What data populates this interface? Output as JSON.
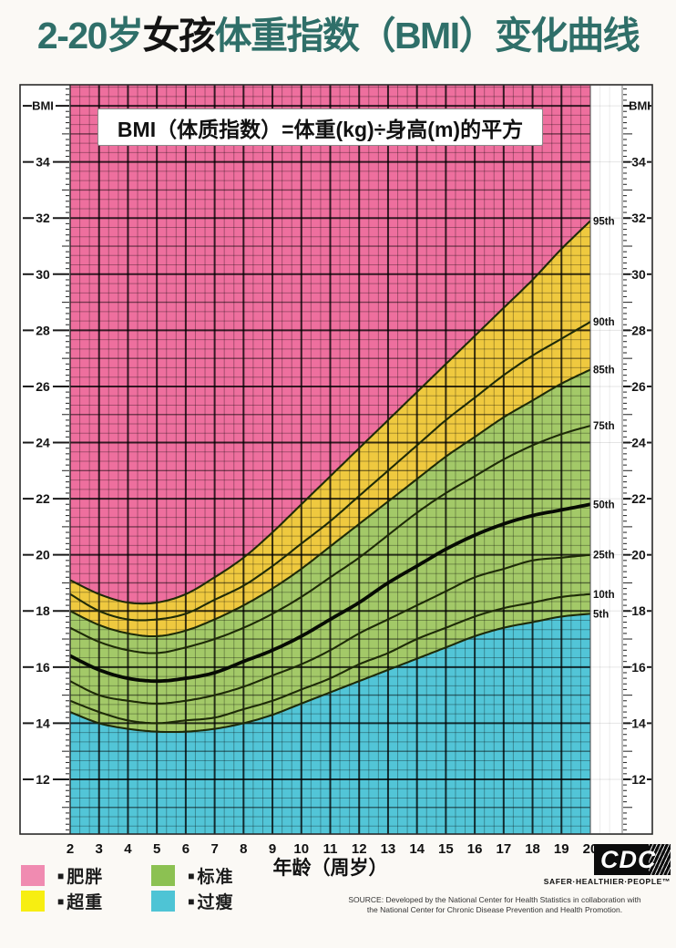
{
  "title": {
    "prefix": "2-20岁",
    "girl": "女孩",
    "suffix": "体重指数（BMI）变化曲线"
  },
  "colors": {
    "title_teal": "#2f6f69",
    "title_black": "#141414",
    "curve": "#1e2a08",
    "curve_median": "#070b03",
    "axis_text": "#151515"
  },
  "chart_data": {
    "type": "line",
    "title": "2-20岁女孩体重指数（BMI）变化曲线",
    "xlabel": "年龄（周岁）",
    "ylabel": "BMI",
    "annotation": "BMI（体质指数）=体重(kg)÷身高(m)的平方",
    "x": [
      2,
      3,
      4,
      5,
      6,
      7,
      8,
      9,
      10,
      11,
      12,
      13,
      14,
      15,
      16,
      17,
      18,
      19,
      20
    ],
    "x_ticks": [
      2,
      3,
      4,
      5,
      6,
      7,
      8,
      9,
      10,
      11,
      12,
      13,
      14,
      15,
      16,
      17,
      18,
      19,
      20
    ],
    "y_ticks": [
      34,
      32,
      30,
      28,
      26,
      24,
      22,
      20,
      18,
      16,
      14,
      12
    ],
    "xlim": [
      2,
      20
    ],
    "ylim": [
      10.05,
      36.75
    ],
    "grid": true,
    "legend_position": "bottom-left",
    "series": [
      {
        "name": "95th",
        "values": [
          19.1,
          18.6,
          18.3,
          18.3,
          18.6,
          19.2,
          19.9,
          20.8,
          21.8,
          22.8,
          23.8,
          24.8,
          25.8,
          26.8,
          27.8,
          28.8,
          29.8,
          30.9,
          31.9
        ]
      },
      {
        "name": "90th",
        "values": [
          18.6,
          18.0,
          17.7,
          17.7,
          17.9,
          18.4,
          18.9,
          19.6,
          20.4,
          21.2,
          22.1,
          23.0,
          23.9,
          24.8,
          25.6,
          26.4,
          27.1,
          27.7,
          28.3
        ]
      },
      {
        "name": "85th",
        "values": [
          18.0,
          17.5,
          17.2,
          17.1,
          17.3,
          17.7,
          18.2,
          18.8,
          19.5,
          20.3,
          21.1,
          21.9,
          22.7,
          23.5,
          24.2,
          24.9,
          25.5,
          26.1,
          26.6
        ]
      },
      {
        "name": "75th",
        "values": [
          17.4,
          16.9,
          16.6,
          16.5,
          16.7,
          17.0,
          17.4,
          17.9,
          18.5,
          19.2,
          19.9,
          20.7,
          21.5,
          22.2,
          22.8,
          23.4,
          23.9,
          24.3,
          24.6
        ]
      },
      {
        "name": "50th",
        "values": [
          16.4,
          15.9,
          15.6,
          15.5,
          15.6,
          15.8,
          16.2,
          16.6,
          17.1,
          17.7,
          18.3,
          19.0,
          19.6,
          20.2,
          20.7,
          21.1,
          21.4,
          21.6,
          21.8
        ],
        "emphasis": true
      },
      {
        "name": "25th",
        "values": [
          15.5,
          15.0,
          14.8,
          14.7,
          14.8,
          15.0,
          15.3,
          15.7,
          16.1,
          16.6,
          17.2,
          17.7,
          18.2,
          18.7,
          19.2,
          19.5,
          19.8,
          19.9,
          20.0
        ]
      },
      {
        "name": "10th",
        "values": [
          14.8,
          14.4,
          14.1,
          14.0,
          14.1,
          14.2,
          14.5,
          14.8,
          15.2,
          15.6,
          16.1,
          16.5,
          17.0,
          17.4,
          17.8,
          18.1,
          18.3,
          18.5,
          18.6
        ]
      },
      {
        "name": "5th",
        "values": [
          14.4,
          14.0,
          13.8,
          13.7,
          13.7,
          13.8,
          14.0,
          14.3,
          14.7,
          15.1,
          15.5,
          15.9,
          16.3,
          16.7,
          17.1,
          17.4,
          17.6,
          17.8,
          17.9
        ]
      }
    ],
    "regions": [
      {
        "name": "肥胖",
        "rule": "above 95th",
        "color": "#ee6f9e"
      },
      {
        "name": "超重",
        "rule": "85th-95th",
        "color": "#efc93f"
      },
      {
        "name": "标准",
        "rule": "5th-85th",
        "color": "#a3c968"
      },
      {
        "name": "过瘦",
        "rule": "below 5th",
        "color": "#52c5d7"
      }
    ]
  },
  "legend": {
    "bullet": "■",
    "items": [
      {
        "label": "肥胖",
        "color": "#f08bb1"
      },
      {
        "label": "超重",
        "color": "#f7ee11"
      },
      {
        "label": "标准",
        "color": "#8cc152"
      },
      {
        "label": "过瘦",
        "color": "#4ec4d5"
      }
    ]
  },
  "footer": {
    "cdc_label": "CDC",
    "tagline": "SAFER·HEALTHIER·PEOPLE™",
    "source_line1": "SOURCE: Developed by the National Center for Health Statistics in collaboration with",
    "source_line2": "the National Center for Chronic Disease Prevention and Health Promotion."
  }
}
